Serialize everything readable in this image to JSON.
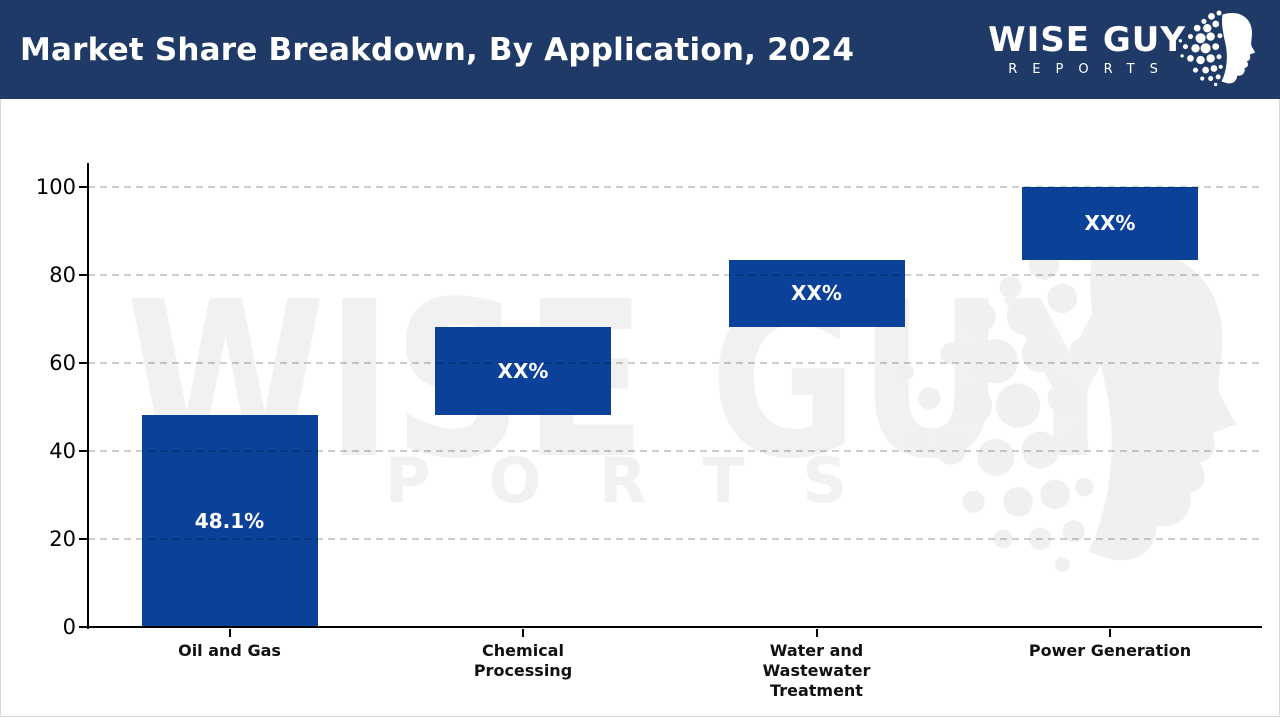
{
  "header": {
    "title": "Market Share Breakdown, By Application, 2024",
    "logo": {
      "line1": "WISE GUY",
      "line2": "REPORTS"
    }
  },
  "watermark": {
    "line1": "WISE GUY",
    "line2": "PORTS"
  },
  "chart_data": {
    "type": "bar",
    "subtype": "waterfall",
    "title": "Market Share Breakdown, By Application, 2024",
    "categories": [
      "Oil and Gas",
      "Chemical Processing",
      "Water and Wastewater Treatment",
      "Power Generation"
    ],
    "category_lines": [
      [
        "Oil and Gas"
      ],
      [
        "Chemical",
        "Processing"
      ],
      [
        "Water and",
        "Wastewater",
        "Treatment"
      ],
      [
        "Power Generation"
      ]
    ],
    "segments": [
      {
        "category": "Oil and Gas",
        "start": 0,
        "end": 48.1,
        "label": "48.1%"
      },
      {
        "category": "Chemical Processing",
        "start": 48.1,
        "end": 68.1,
        "label": "XX%"
      },
      {
        "category": "Water and Wastewater Treatment",
        "start": 68.1,
        "end": 83.5,
        "label": "XX%"
      },
      {
        "category": "Power Generation",
        "start": 83.5,
        "end": 100,
        "label": "XX%"
      }
    ],
    "xlabel": "",
    "ylabel": "",
    "ylim": [
      0,
      100
    ],
    "yticks": [
      0,
      20,
      40,
      60,
      80,
      100
    ],
    "grid": {
      "axis": "y",
      "style": "dashed"
    },
    "legend": "none",
    "bar_color": "#0b4199",
    "value_label_color": "#ffffff",
    "note": "XX% labels are masked values in the source image; start/end estimated from gridlines"
  },
  "colors": {
    "header_bg": "#203a68",
    "bar": "#0b4199",
    "grid": "#cfcfcf",
    "axis": "#000000",
    "watermark": "#f1f1f1"
  }
}
